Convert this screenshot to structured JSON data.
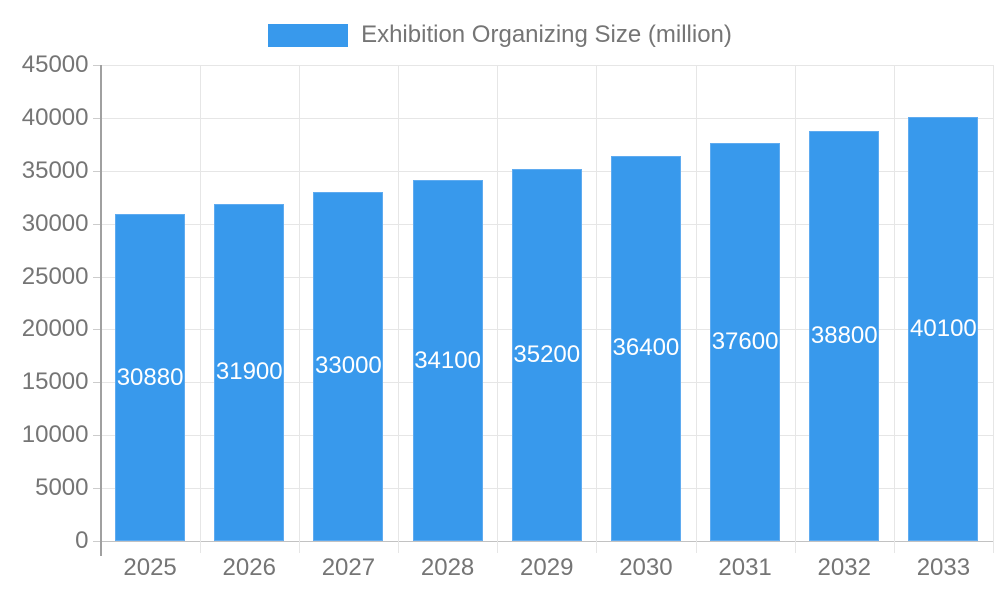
{
  "legend": {
    "label": "Exhibition Organizing Size (million)"
  },
  "chart_data": {
    "type": "bar",
    "title": "",
    "categories": [
      "2025",
      "2026",
      "2027",
      "2028",
      "2029",
      "2030",
      "2031",
      "2032",
      "2033"
    ],
    "series": [
      {
        "name": "Exhibition Organizing Size (million)",
        "values": [
          30880,
          31900,
          33000,
          34100,
          35200,
          36400,
          37600,
          38800,
          40100
        ]
      }
    ],
    "xlabel": "",
    "ylabel": "",
    "ylim": [
      0,
      45000
    ],
    "ytick_step": 5000,
    "grid": true,
    "legend_position": "top",
    "bar_labels_inside": true,
    "colors": {
      "bar_fill": "#3899EC",
      "bar_label_text": "#ffffff",
      "axis_text": "#757575",
      "gridline": "#e6e6e6",
      "axis_line": "#a0a0a0",
      "zero_line": "#c2c2c2",
      "background": "#ffffff"
    }
  }
}
